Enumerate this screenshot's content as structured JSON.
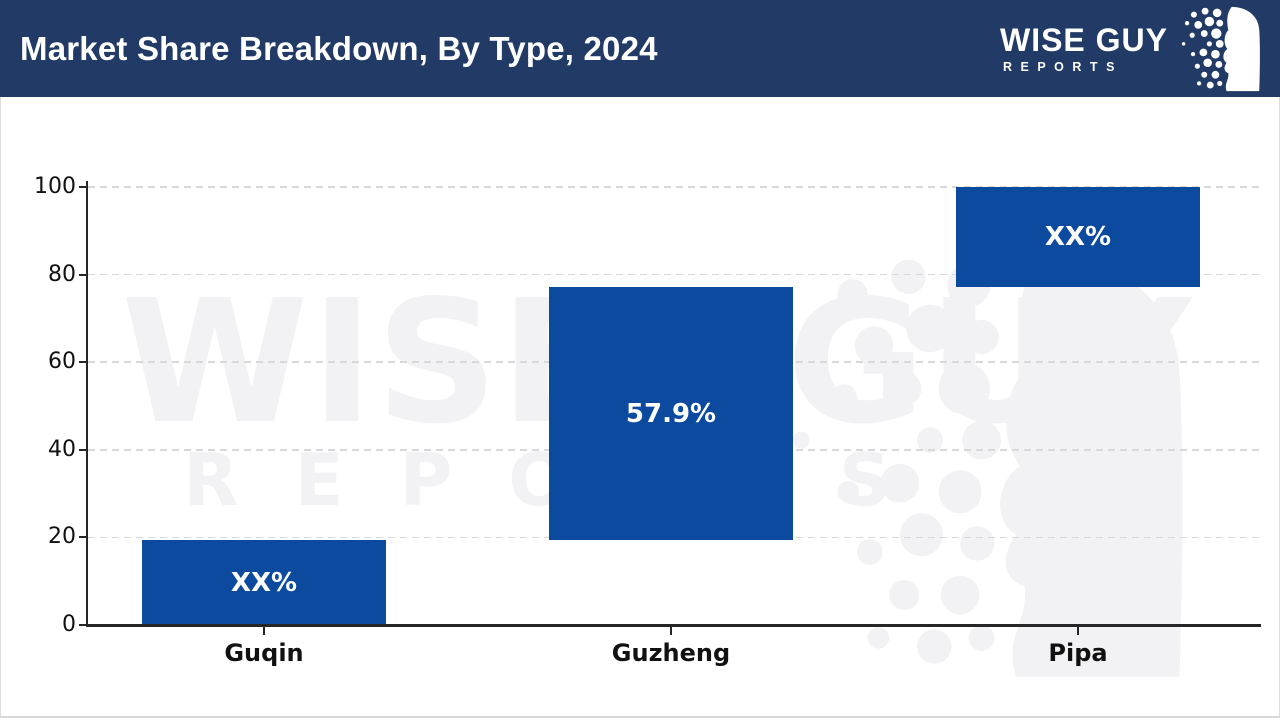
{
  "header": {
    "title": "Market Share Breakdown, By Type, 2024",
    "logo": {
      "wordmark": "WISE GUY",
      "subtext": "REPORTS"
    }
  },
  "watermark": {
    "word1": "WISE",
    "word2": "GUY",
    "line2": "REPORTS"
  },
  "chart_data": {
    "type": "bar",
    "subtype": "floating-segment waterfall (stacked market-share breakdown)",
    "title": "Market Share Breakdown, By Type, 2024",
    "categories": [
      "Guqin",
      "Guzheng",
      "Pipa"
    ],
    "series": [
      {
        "name": "Market share (%)",
        "segments": [
          {
            "category": "Guqin",
            "start": 0,
            "end": 19.3,
            "label": "XX%"
          },
          {
            "category": "Guzheng",
            "start": 19.3,
            "end": 77.2,
            "label": "57.9%"
          },
          {
            "category": "Pipa",
            "start": 77.2,
            "end": 100,
            "label": "XX%"
          }
        ]
      }
    ],
    "xlabel": "",
    "ylabel": "",
    "ylim": [
      0,
      100
    ],
    "yticks": [
      0,
      20,
      40,
      60,
      80,
      100
    ],
    "grid": "horizontal dashed",
    "legend_position": "none",
    "bar_color": "#0b4a9e",
    "bar_label_color": "#ffffff"
  },
  "colors": {
    "header_bg": "#213a66",
    "bar": "#0b4a9e",
    "axis": "#262626",
    "grid": "#d8d8d8",
    "watermark": "#f2f2f5",
    "text": "#111111",
    "title_text": "#ffffff"
  }
}
